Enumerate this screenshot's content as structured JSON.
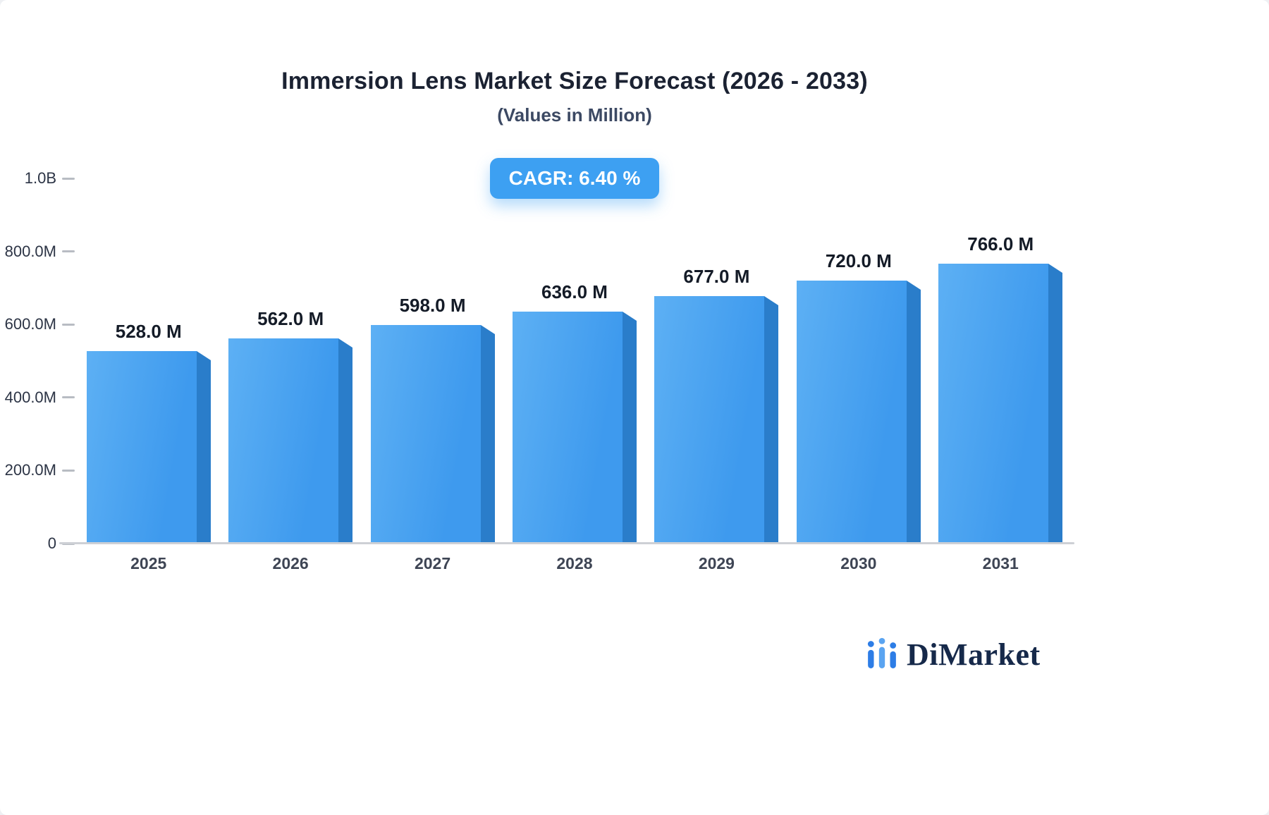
{
  "header": {
    "title": "Immersion Lens Market Size Forecast (2026 - 2033)",
    "subtitle": "(Values in Million)",
    "cagr_badge": "CAGR: 6.40 %"
  },
  "brand": {
    "name": "DiMarket",
    "icon": "bar-chart-logo-icon"
  },
  "colors": {
    "bar_face": "#3E9AEE",
    "bar_side": "#2A7DCA",
    "badge_background": "#3DA0F2",
    "title_text": "#1B2232",
    "axis_text": "#3E4554",
    "brand_blue": "#2D7DE6"
  },
  "chart_data": {
    "type": "bar",
    "title": "Immersion Lens Market Size Forecast (2026 - 2033)",
    "subtitle": "(Values in Million)",
    "unit": "Million",
    "categories": [
      "2025",
      "2026",
      "2027",
      "2028",
      "2029",
      "2030",
      "2031"
    ],
    "values": [
      528,
      562,
      598,
      636,
      677,
      720,
      766
    ],
    "value_labels": [
      "528.0 M",
      "562.0 M",
      "598.0 M",
      "636.0 M",
      "677.0 M",
      "720.0 M",
      "766.0 M"
    ],
    "xlabel": "",
    "ylabel": "",
    "ylim": [
      0,
      1000
    ],
    "yticks": [
      0,
      200,
      400,
      600,
      800,
      1000
    ],
    "ytick_labels": [
      "0",
      "200.0M",
      "400.0M",
      "600.0M",
      "800.0M",
      "1.0B"
    ],
    "grid": false,
    "legend": "none",
    "cagr": "6.40 %"
  }
}
